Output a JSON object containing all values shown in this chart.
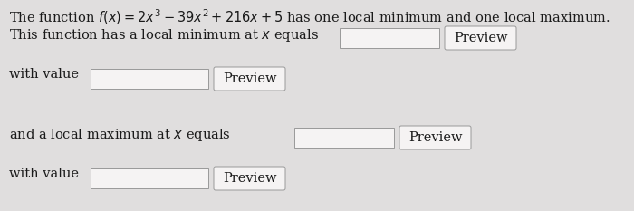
{
  "bg_color": "#e0dede",
  "inner_bg_color": "#f0eeee",
  "text_color": "#1a1a1a",
  "line1a": "The function $f(x) = 2x^3 - 39x^2 + 216x + 5$ has one local minimum and one local maximum.",
  "line2_prefix": "This function has a local minimum at $x$ equals",
  "line3_prefix": "with value",
  "line4_prefix": "and a local maximum at $x$ equals",
  "line5_prefix": "with value",
  "preview_label": "Preview",
  "input_box_color": "#f5f3f3",
  "preview_box_color": "#f5f3f3",
  "preview_border_color": "#999999",
  "input_border_color": "#999999",
  "font_size": 10.5,
  "fig_width": 7.0,
  "fig_height": 2.33,
  "dpi": 100
}
